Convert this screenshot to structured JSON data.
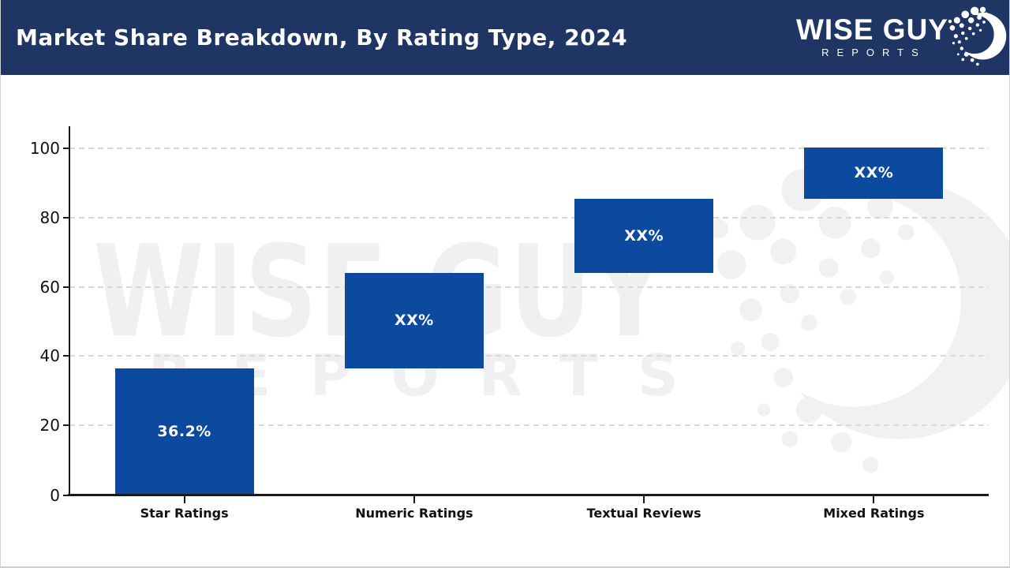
{
  "header": {
    "title": "Market Share Breakdown, By Rating Type, 2024",
    "logo": {
      "line1": "WISE GUY",
      "line2": "REPORTS"
    }
  },
  "watermark": {
    "line1": "WISE GUY",
    "line2": "REPORTS"
  },
  "colors": {
    "header_bg": "#1f3563",
    "bar": "#0c4aa0",
    "bar_label": "#ffffff",
    "grid": "#d9d9d9",
    "axis": "#1a1a1a",
    "watermark": "#f0f0f3"
  },
  "chart_data": {
    "type": "bar",
    "subtype": "floating-waterfall",
    "title": "Market Share Breakdown, By Rating Type, 2024",
    "categories": [
      "Star Ratings",
      "Numeric Ratings",
      "Textual Reviews",
      "Mixed Ratings"
    ],
    "segments": [
      {
        "category": "Star Ratings",
        "start": 0,
        "end": 36.2,
        "label": "36.2%"
      },
      {
        "category": "Numeric Ratings",
        "start": 36.2,
        "end": 63.8,
        "label": "XX%"
      },
      {
        "category": "Textual Reviews",
        "start": 63.8,
        "end": 85.2,
        "label": "XX%"
      },
      {
        "category": "Mixed Ratings",
        "start": 85.2,
        "end": 100,
        "label": "XX%"
      }
    ],
    "xlabel": "",
    "ylabel": "",
    "yticks": [
      0,
      20,
      40,
      60,
      80,
      100
    ],
    "ylim": [
      0,
      106
    ],
    "grid": "horizontal-dashed",
    "legend": "none",
    "bar_color": "#0c4aa0"
  }
}
